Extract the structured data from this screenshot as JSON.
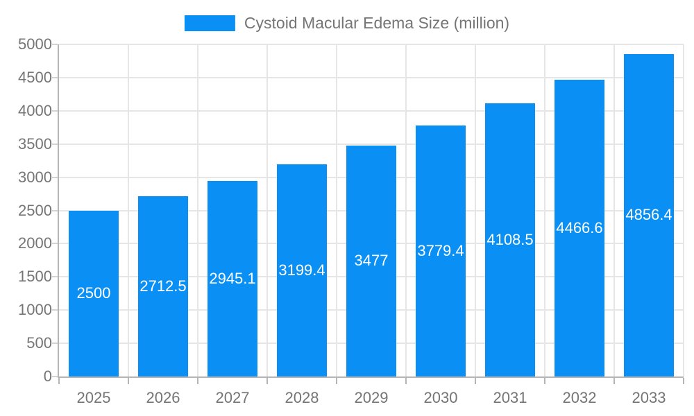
{
  "legend": {
    "label": "Cystoid Macular Edema Size (million)"
  },
  "chart_data": {
    "type": "bar",
    "title": "Cystoid Macular Edema Size (million)",
    "categories": [
      "2025",
      "2026",
      "2027",
      "2028",
      "2029",
      "2030",
      "2031",
      "2032",
      "2033"
    ],
    "values": [
      2500,
      2712.5,
      2945.1,
      3199.4,
      3477,
      3779.4,
      4108.5,
      4466.6,
      4856.4
    ],
    "xlabel": "",
    "ylabel": "",
    "ylim": [
      0,
      5000
    ],
    "ytick_step": 500,
    "yticks": [
      0,
      500,
      1000,
      1500,
      2000,
      2500,
      3000,
      3500,
      4000,
      4500,
      5000
    ],
    "grid": true,
    "legend_position": "top-center",
    "colors": {
      "bar": "#0a90f5",
      "value_label": "#ffffff",
      "axis_text": "#757575",
      "legend_text": "#757575",
      "grid_line": "#e6e6e6",
      "axis_line": "#b5b5b5",
      "tick_x": "#b5b5b5",
      "tick_y": "#d4d4d4",
      "background": "#ffffff"
    }
  }
}
